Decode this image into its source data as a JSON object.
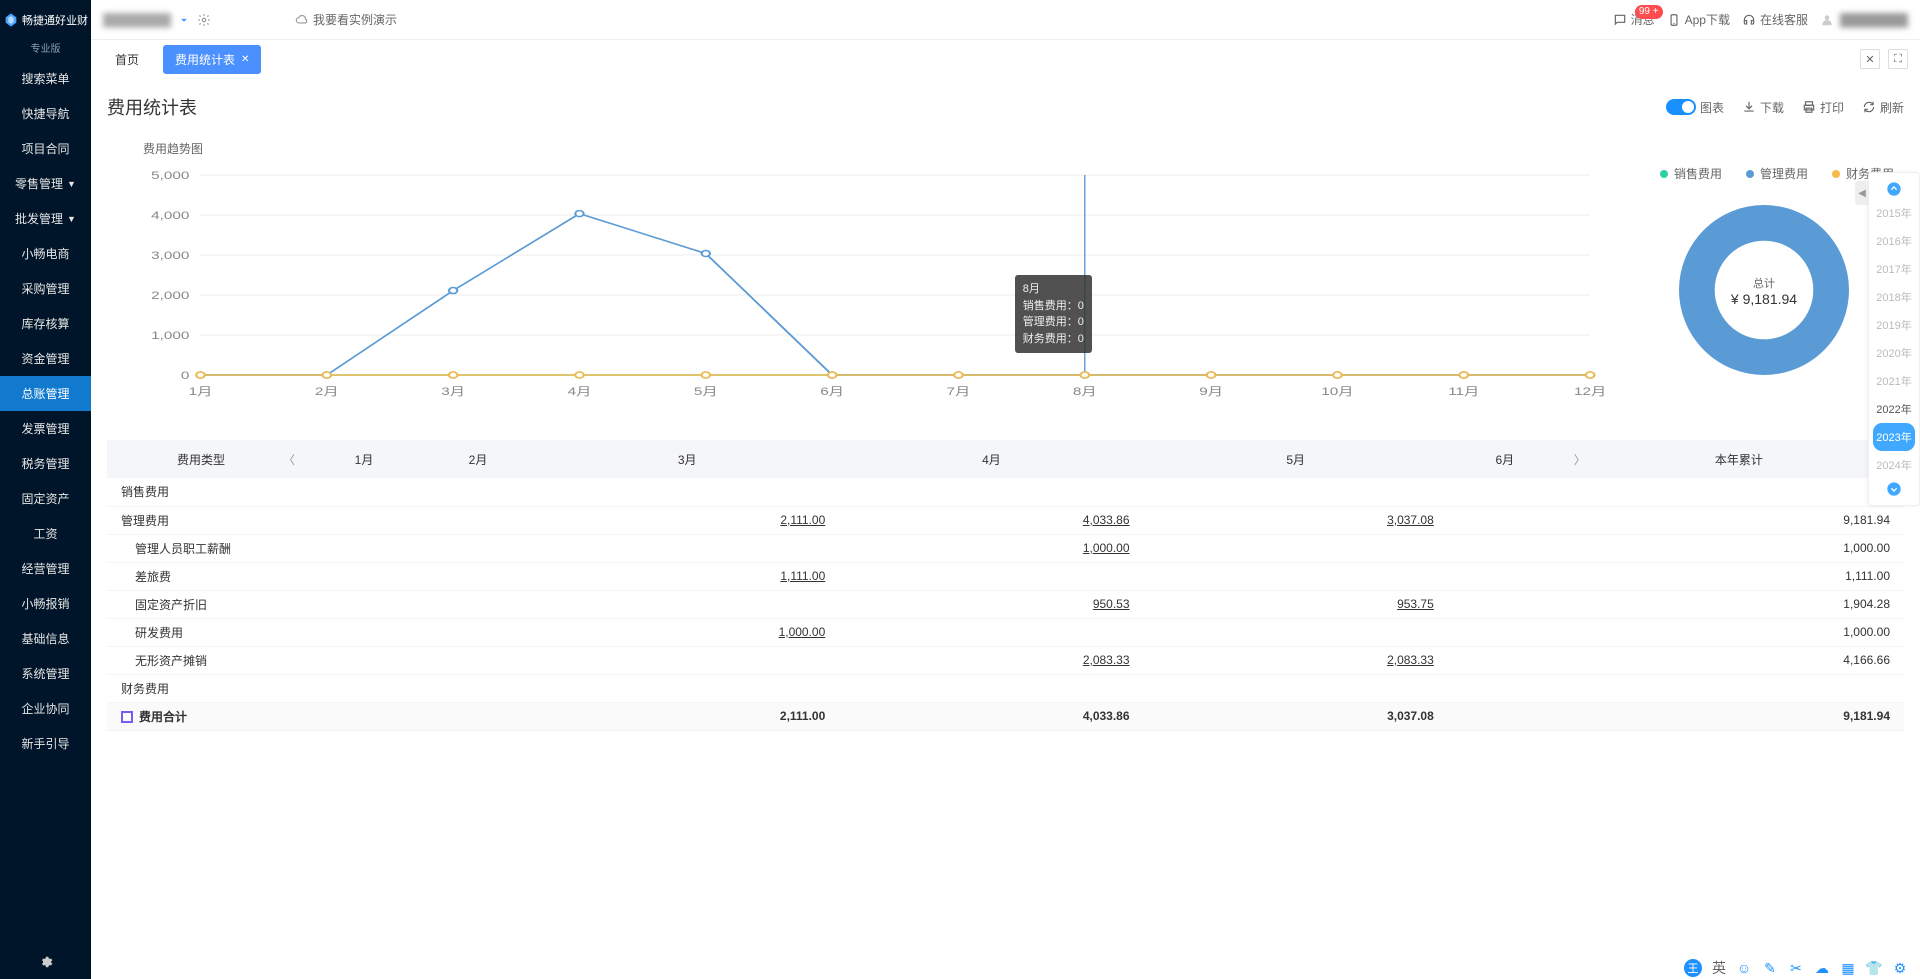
{
  "app": {
    "name": "畅捷通好业财",
    "edition": "专业版"
  },
  "topbar": {
    "org_placeholder": "",
    "demo_text": "我要看实例演示",
    "msg": "消息",
    "msg_badge": "99 +",
    "download": "App下载",
    "service": "在线客服"
  },
  "sidebar": {
    "items": [
      {
        "label": "搜索菜单"
      },
      {
        "label": "快捷导航"
      },
      {
        "label": "项目合同"
      },
      {
        "label": "零售管理",
        "caret": true
      },
      {
        "label": "批发管理",
        "caret": true
      },
      {
        "label": "小畅电商"
      },
      {
        "label": "采购管理"
      },
      {
        "label": "库存核算"
      },
      {
        "label": "资金管理"
      },
      {
        "label": "总账管理",
        "active": true
      },
      {
        "label": "发票管理"
      },
      {
        "label": "税务管理"
      },
      {
        "label": "固定资产"
      },
      {
        "label": "工资"
      },
      {
        "label": "经营管理"
      },
      {
        "label": "小畅报销"
      },
      {
        "label": "基础信息"
      },
      {
        "label": "系统管理"
      },
      {
        "label": "企业协同"
      },
      {
        "label": "新手引导"
      }
    ]
  },
  "tabs": {
    "home": "首页",
    "current": "费用统计表"
  },
  "page": {
    "title": "费用统计表",
    "actions": {
      "chart": "图表",
      "download": "下载",
      "print": "打印",
      "refresh": "刷新"
    }
  },
  "line_chart": {
    "title": "费用趋势图",
    "type": "line",
    "x_labels": [
      "1月",
      "2月",
      "3月",
      "4月",
      "5月",
      "6月",
      "7月",
      "8月",
      "9月",
      "10月",
      "11月",
      "12月"
    ],
    "y_ticks": [
      0,
      1000,
      2000,
      3000,
      4000,
      5000
    ],
    "ylim": [
      0,
      5000
    ],
    "grid_color": "#eeeeee",
    "axis_color": "#cccccc",
    "tick_font_size": 11,
    "tick_color": "#888888",
    "series": [
      {
        "name": "销售费用",
        "color": "#2fcfa4",
        "values": [
          0,
          0,
          0,
          0,
          0,
          0,
          0,
          0,
          0,
          0,
          0,
          0
        ],
        "marker": "circle"
      },
      {
        "name": "管理费用",
        "color": "#5b9bd5",
        "values": [
          0,
          0,
          2111,
          4034,
          3037,
          0,
          0,
          0,
          0,
          0,
          0,
          0
        ],
        "marker": "circle"
      },
      {
        "name": "财务费用",
        "color": "#f6b94a",
        "values": [
          0,
          0,
          0,
          0,
          0,
          0,
          0,
          0,
          0,
          0,
          0,
          0
        ],
        "marker": "circle"
      }
    ],
    "tooltip": {
      "month": "8月",
      "rows": [
        {
          "label": "销售费用",
          "val": "0"
        },
        {
          "label": "管理费用",
          "val": "0"
        },
        {
          "label": "财务费用",
          "val": "0"
        }
      ],
      "crosshair_x_index": 7,
      "crosshair_color": "#5b9bd5"
    }
  },
  "legend": [
    {
      "label": "销售费用",
      "color": "#2fcfa4"
    },
    {
      "label": "管理费用",
      "color": "#5b9bd5"
    },
    {
      "label": "财务费用",
      "color": "#f6b94a"
    }
  ],
  "donut": {
    "type": "donut",
    "center_label": "总计",
    "center_value": "¥ 9,181.94",
    "color": "#5b9bd5",
    "inner_ratio": 0.58,
    "value": 9181.94,
    "background": "#ffffff"
  },
  "years": {
    "list": [
      "2015年",
      "2016年",
      "2017年",
      "2018年",
      "2019年",
      "2020年",
      "2021年",
      "2022年",
      "2023年",
      "2024年"
    ],
    "selected": "2023年",
    "dark": "2022年"
  },
  "table": {
    "type_header": "费用类型",
    "month_cols": [
      "1月",
      "2月",
      "3月",
      "4月",
      "5月",
      "6月"
    ],
    "total_col": "本年累计",
    "rows": [
      {
        "label": "销售费用",
        "indent": 0,
        "cells": [
          "",
          "",
          "",
          "",
          "",
          ""
        ],
        "total": ""
      },
      {
        "label": "管理费用",
        "indent": 0,
        "cells": [
          "",
          "",
          "2,111.00",
          "4,033.86",
          "3,037.08",
          ""
        ],
        "total": "9,181.94",
        "link": [
          false,
          false,
          true,
          true,
          true,
          false
        ]
      },
      {
        "label": "管理人员职工薪酬",
        "indent": 1,
        "cells": [
          "",
          "",
          "",
          "1,000.00",
          "",
          ""
        ],
        "total": "1,000.00",
        "link": [
          false,
          false,
          false,
          true,
          false,
          false
        ]
      },
      {
        "label": "差旅费",
        "indent": 1,
        "cells": [
          "",
          "",
          "1,111.00",
          "",
          "",
          ""
        ],
        "total": "1,111.00",
        "link": [
          false,
          false,
          true,
          false,
          false,
          false
        ]
      },
      {
        "label": "固定资产折旧",
        "indent": 1,
        "cells": [
          "",
          "",
          "",
          "950.53",
          "953.75",
          ""
        ],
        "total": "1,904.28",
        "link": [
          false,
          false,
          false,
          true,
          true,
          false
        ]
      },
      {
        "label": "研发费用",
        "indent": 1,
        "cells": [
          "",
          "",
          "1,000.00",
          "",
          "",
          ""
        ],
        "total": "1,000.00",
        "link": [
          false,
          false,
          true,
          false,
          false,
          false
        ]
      },
      {
        "label": "无形资产摊销",
        "indent": 1,
        "cells": [
          "",
          "",
          "",
          "2,083.33",
          "2,083.33",
          ""
        ],
        "total": "4,166.66",
        "link": [
          false,
          false,
          false,
          true,
          true,
          false
        ]
      },
      {
        "label": "财务费用",
        "indent": 0,
        "cells": [
          "",
          "",
          "",
          "",
          "",
          ""
        ],
        "total": ""
      }
    ],
    "total_row": {
      "label": "费用合计",
      "cells": [
        "",
        "",
        "2,111.00",
        "4,033.86",
        "3,037.08",
        ""
      ],
      "total": "9,181.94"
    }
  },
  "taskbar": {
    "ime": "英"
  }
}
